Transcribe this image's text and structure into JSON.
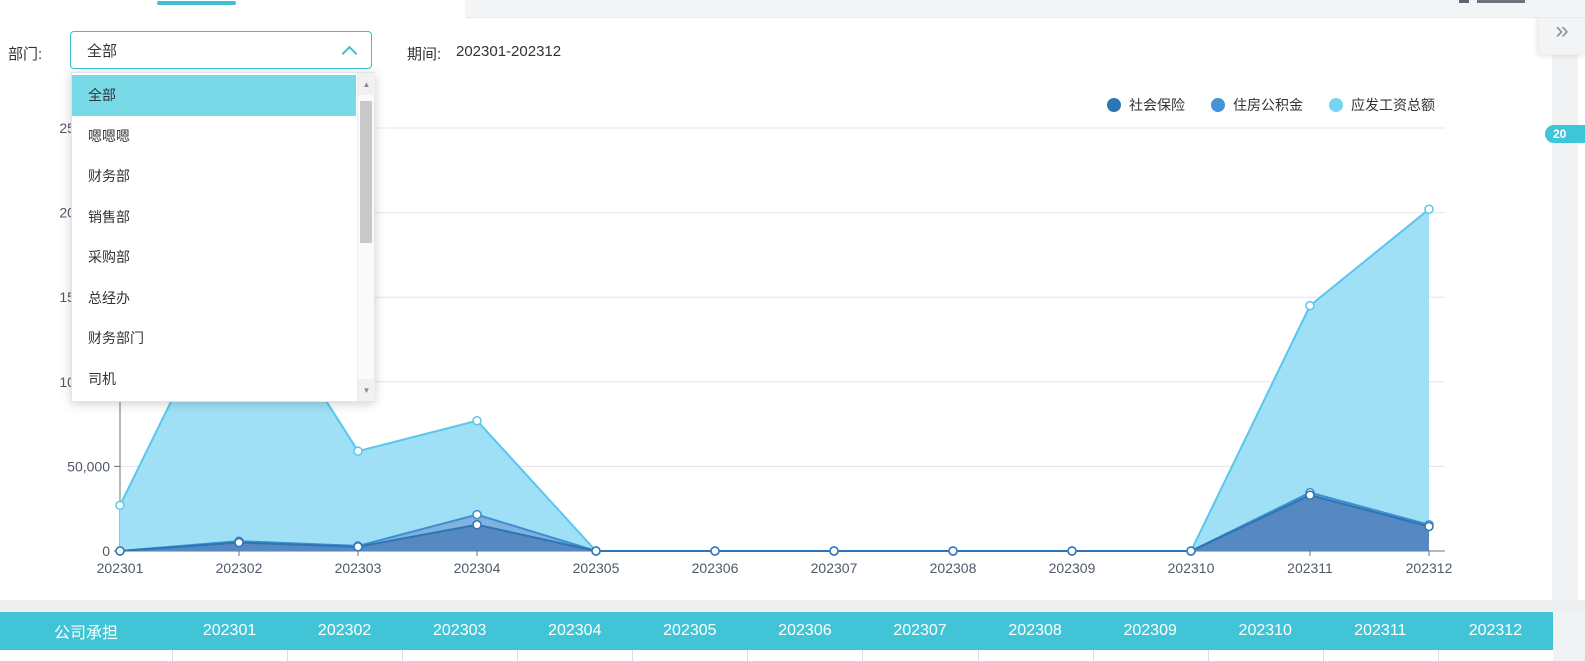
{
  "filter": {
    "department_label": "部门:",
    "department_value": "全部",
    "period_label": "期间:",
    "period_value": "202301-202312"
  },
  "dropdown": {
    "items": [
      "全部",
      "嗯嗯嗯",
      "财务部",
      "销售部",
      "采购部",
      "总经办",
      "财务部门",
      "司机"
    ],
    "selected_index": 0,
    "scroll_up_icon": "▲",
    "scroll_down_icon": "▼"
  },
  "expand_button": {
    "icon": "»"
  },
  "year_badge": {
    "text": "20"
  },
  "legend": [
    {
      "label": "社会保险",
      "color": "#2E75B6"
    },
    {
      "label": "住房公积金",
      "color": "#4693D6"
    },
    {
      "label": "应发工资总额",
      "color": "#76D4F2"
    }
  ],
  "chart_data": {
    "type": "area",
    "x": [
      "202301",
      "202302",
      "202303",
      "202304",
      "202305",
      "202306",
      "202307",
      "202308",
      "202309",
      "202310",
      "202311",
      "202312"
    ],
    "series": [
      {
        "name": "社会保险",
        "line": "#2E75B6",
        "fill": "#5688C1",
        "values": [
          0,
          5000,
          2500,
          15500,
          0,
          0,
          0,
          0,
          0,
          0,
          33000,
          14500
        ]
      },
      {
        "name": "住房公积金",
        "line": "#3E8FD0",
        "fill": "#7FB2DF",
        "values": [
          0,
          5800,
          3000,
          21500,
          0,
          0,
          0,
          0,
          0,
          0,
          34500,
          15500
        ]
      },
      {
        "name": "应发工资总额",
        "line": "#58C7EE",
        "fill": "#9FE0F7",
        "values": [
          27000,
          170000,
          59000,
          77000,
          0,
          0,
          0,
          0,
          0,
          0,
          145000,
          202000
        ]
      }
    ],
    "ylim": [
      0,
      250000
    ],
    "yticks": [
      "0",
      "50,000",
      "100,000",
      "150,000",
      "200,000",
      "250,000"
    ],
    "grid": true,
    "legend_position": "top-right",
    "title": "",
    "xlabel": "",
    "ylabel": ""
  },
  "table": {
    "first_header": "公司承担",
    "month_headers": [
      "202301",
      "202302",
      "202303",
      "202304",
      "202305",
      "202306",
      "202307",
      "202308",
      "202309",
      "202310",
      "202311",
      "202312"
    ]
  }
}
